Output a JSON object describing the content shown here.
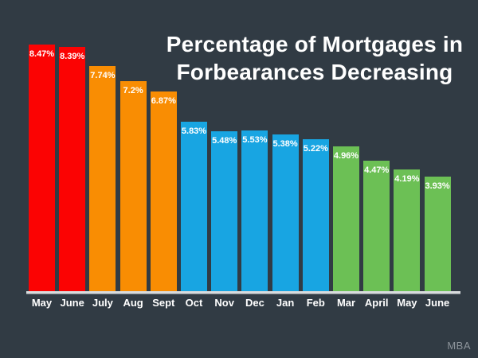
{
  "page": {
    "background": "#313B44"
  },
  "header": {
    "title_line1": "Percentage of Mortgages in",
    "title_line2": "Forbearances Decreasing"
  },
  "footer": {
    "source": "MBA"
  },
  "chart_data": {
    "type": "bar",
    "title": "Percentage of Mortgages in Forbearances Decreasing",
    "xlabel": "",
    "ylabel": "",
    "categories": [
      "May",
      "June",
      "July",
      "Aug",
      "Sept",
      "Oct",
      "Nov",
      "Dec",
      "Jan",
      "Feb",
      "Mar",
      "April",
      "May",
      "June"
    ],
    "values": [
      8.47,
      8.39,
      7.74,
      7.2,
      6.87,
      5.83,
      5.48,
      5.53,
      5.38,
      5.22,
      4.96,
      4.47,
      4.19,
      3.93
    ],
    "labels": [
      "8.47%",
      "8.39%",
      "7.74%",
      "7.2%",
      "6.87%",
      "5.83%",
      "5.48%",
      "5.53%",
      "5.38%",
      "5.22%",
      "4.96%",
      "4.47%",
      "4.19%",
      "3.93%"
    ],
    "bar_colors": [
      "red",
      "red",
      "orange",
      "orange",
      "orange",
      "blue",
      "blue",
      "blue",
      "blue",
      "blue",
      "green",
      "green",
      "green",
      "green"
    ],
    "palette": {
      "red": "#FB0303",
      "orange": "#F98D03",
      "blue": "#18A5E2",
      "green": "#6CC055"
    },
    "value_label_position": "inside-top",
    "value_label_color": "#FFFFFF",
    "axis_line_color": "#D8DBDD",
    "background": "#313B44",
    "ylim": [
      0,
      9
    ],
    "grid": false,
    "legend": "none"
  }
}
